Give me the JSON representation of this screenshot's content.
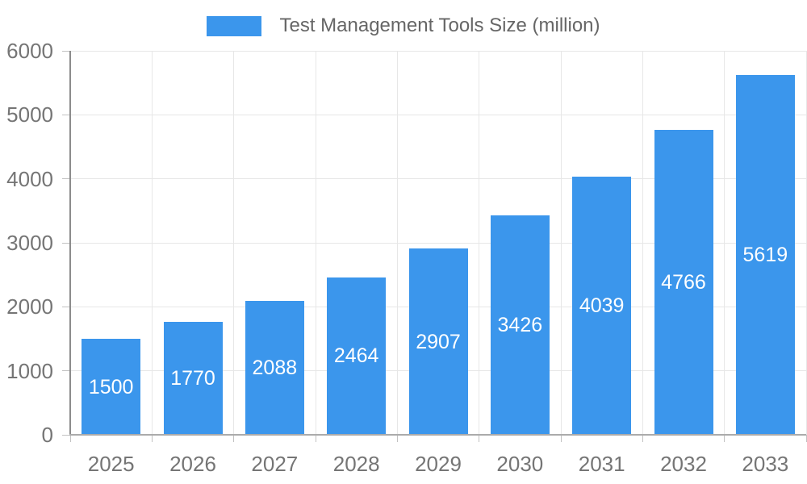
{
  "chart_data": {
    "type": "bar",
    "title": "Test Management Tools Size (million)",
    "legend": {
      "label": "Test Management Tools Size (million)",
      "position": "top"
    },
    "categories": [
      "2025",
      "2026",
      "2027",
      "2028",
      "2029",
      "2030",
      "2031",
      "2032",
      "2033"
    ],
    "series": [
      {
        "name": "Test Management Tools Size (million)",
        "values": [
          1500,
          1770,
          2088,
          2464,
          2907,
          3426,
          4039,
          4766,
          5619
        ]
      }
    ],
    "xlabel": "",
    "ylabel": "",
    "ylim": [
      0,
      6000
    ],
    "ytick_step": 1000,
    "yticks": [
      "0",
      "1000",
      "2000",
      "3000",
      "4000",
      "5000",
      "6000"
    ],
    "grid": true,
    "bar_labels_visible": true,
    "colors": {
      "bar": "#3b96ec",
      "bar_label": "#ffffff",
      "axis_text": "#757575",
      "legend_text": "#666666",
      "gridline": "#e7e7e7",
      "tick": "#c2c2c2",
      "y_axis_line": "#8c8c8c",
      "x_axis_line": "#ababab",
      "background": "#ffffff"
    }
  }
}
